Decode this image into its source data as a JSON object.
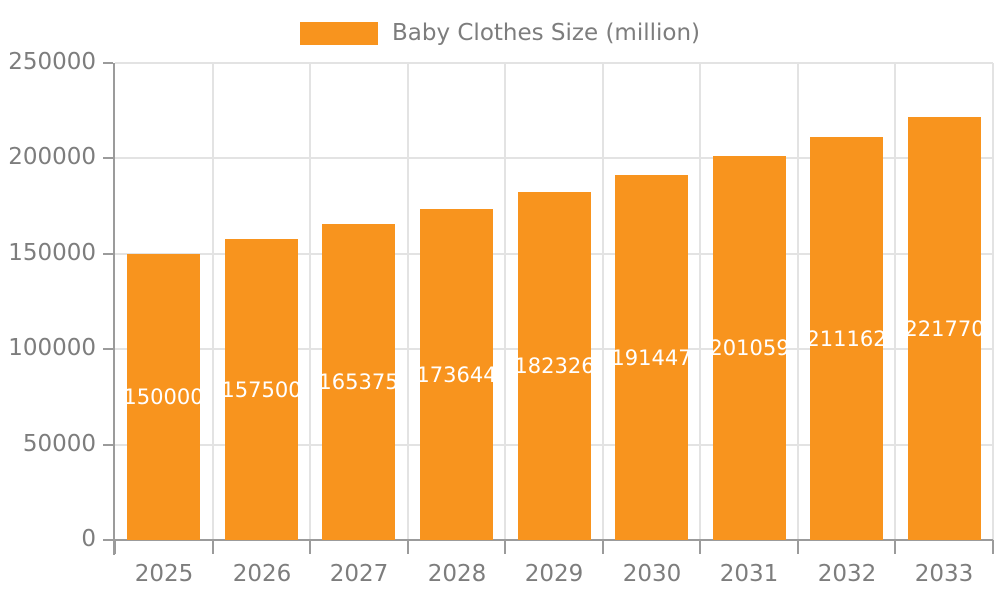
{
  "chart_data": {
    "type": "bar",
    "title": "Baby Clothes Size (million)",
    "series_name": "Baby Clothes Size (million)",
    "categories": [
      "2025",
      "2026",
      "2027",
      "2028",
      "2029",
      "2030",
      "2031",
      "2032",
      "2033"
    ],
    "values": [
      150000,
      157500,
      165375,
      173644,
      182326,
      191447,
      201059,
      211162,
      221770
    ],
    "value_labels": [
      "150000",
      "157500",
      "165375",
      "173644",
      "182326",
      "191447",
      "201059",
      "211162",
      "221770"
    ],
    "xlabel": "",
    "ylabel": "",
    "ylim": [
      0,
      250000
    ],
    "yticks": [
      0,
      50000,
      100000,
      150000,
      200000,
      250000
    ],
    "ytick_labels": [
      "0",
      "50000",
      "100000",
      "150000",
      "200000",
      "250000"
    ],
    "grid": true,
    "legend_position": "top-center",
    "bar_color": "#F8941E",
    "value_label_color": "#FFFFFF",
    "axis_text_color": "#7D7D7D",
    "grid_color": "#E3E3E3",
    "axis_line_color": "#9B9B9B",
    "background_color": "#FFFFFF"
  }
}
